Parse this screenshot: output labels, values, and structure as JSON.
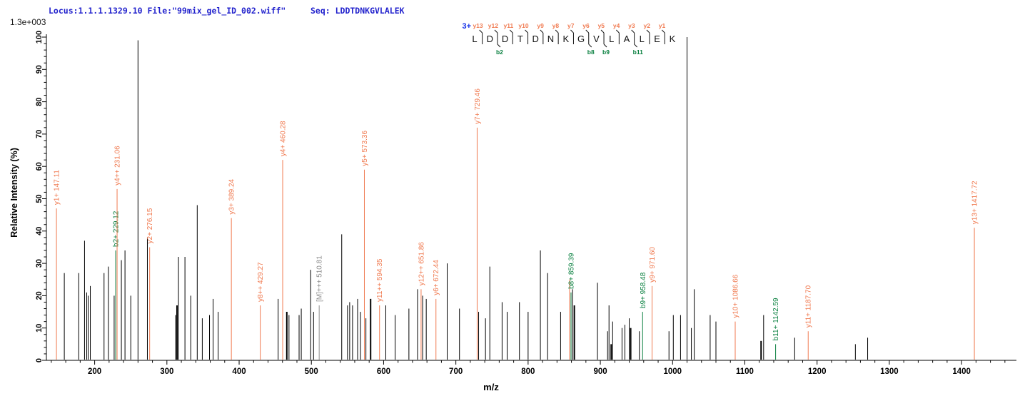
{
  "header": {
    "locus_file": "Locus:1.1.1.1329.10 File:\"99mix_gel_ID_002.wiff\"",
    "seq_label": "Seq: LDDTDNKGVLALEK"
  },
  "scale_label": "1.3e+003",
  "colors": {
    "header_blue": "#2323cd",
    "charge_blue": "#1430e8",
    "y_ion": "#f07a50",
    "b_ion": "#0a8040",
    "M": "#8c8c8c",
    "peak": "#000000",
    "axis": "#000000"
  },
  "peptide": {
    "charge_label": "3+",
    "sequence": "LDDTDNKGVLALEK",
    "residues": [
      "L",
      "D",
      "D",
      "T",
      "D",
      "N",
      "K",
      "G",
      "V",
      "L",
      "A",
      "L",
      "E",
      "K"
    ],
    "y_ion_ladder": [
      "y13",
      "y12",
      "y11",
      "y10",
      "y9",
      "y8",
      "y7",
      "y6",
      "y5",
      "y4",
      "y3",
      "y2",
      "y1"
    ],
    "b_ion_ladder": [
      {
        "label": "b2",
        "boundary": 2
      },
      {
        "label": "b8",
        "boundary": 8
      },
      {
        "label": "b9",
        "boundary": 9
      },
      {
        "label": "b11",
        "boundary": 11
      }
    ]
  },
  "chart_data": {
    "type": "bar",
    "subtype": "centroided-msms-spectrum",
    "title": "",
    "xlabel": "m/z",
    "ylabel": "Relative  Intensity (%)",
    "xlim": [
      133,
      1472
    ],
    "ylim": [
      0,
      100
    ],
    "x_ticks": [
      200,
      300,
      400,
      500,
      600,
      700,
      800,
      900,
      1000,
      1100,
      1200,
      1300,
      1400
    ],
    "y_ticks": [
      0,
      10,
      20,
      30,
      40,
      50,
      60,
      70,
      80,
      90,
      100
    ],
    "x_minor_step": 20,
    "y_minor_step": 2,
    "grid": false,
    "legend": false,
    "base_peak_absolute_intensity": "1.3e+003",
    "peak_format": [
      "mz",
      "intensity_pct",
      "ion_type(y|b|M|empty=unmatched)",
      "label",
      "line_width"
    ],
    "peaks": [
      [
        147.11,
        47,
        "y",
        "y1+ 147.11",
        1
      ],
      [
        158,
        27,
        "",
        "",
        1
      ],
      [
        178,
        27,
        "",
        "",
        1
      ],
      [
        186,
        37,
        "",
        "",
        1
      ],
      [
        189,
        21,
        "",
        "",
        1
      ],
      [
        191,
        20,
        "",
        "",
        1
      ],
      [
        194,
        23,
        "",
        "",
        1
      ],
      [
        213,
        27,
        "",
        "",
        1
      ],
      [
        219,
        29,
        "",
        "",
        1
      ],
      [
        227,
        20,
        "",
        "",
        1
      ],
      [
        229.12,
        34,
        "b",
        "b2+ 229.12",
        1
      ],
      [
        231.06,
        53,
        "y",
        "y4++ 231.06",
        1
      ],
      [
        237,
        31,
        "",
        "",
        1
      ],
      [
        242,
        34,
        "",
        "",
        1
      ],
      [
        250,
        20,
        "",
        "",
        1
      ],
      [
        260,
        99,
        "",
        "",
        1
      ],
      [
        273,
        38,
        "",
        "",
        1
      ],
      [
        276.15,
        35,
        "y",
        "y2+ 276.15",
        1
      ],
      [
        312,
        14,
        "",
        "",
        1
      ],
      [
        314,
        17,
        "",
        "",
        2
      ],
      [
        316,
        32,
        "",
        "",
        1
      ],
      [
        325,
        32,
        "",
        "",
        1
      ],
      [
        333,
        20,
        "",
        "",
        1
      ],
      [
        342,
        48,
        "",
        "",
        1
      ],
      [
        349,
        13,
        "",
        "",
        1
      ],
      [
        359,
        14,
        "",
        "",
        1
      ],
      [
        364,
        19,
        "",
        "",
        1
      ],
      [
        371,
        15,
        "",
        "",
        1
      ],
      [
        389.24,
        44,
        "y",
        "y3+ 389.24",
        1
      ],
      [
        429.27,
        17,
        "y",
        "y8++ 429.27",
        1
      ],
      [
        454,
        19,
        "",
        "",
        1
      ],
      [
        460.28,
        62,
        "y",
        "y4+ 460.28",
        1
      ],
      [
        466,
        15,
        "",
        "",
        2
      ],
      [
        469,
        14,
        "",
        "",
        1
      ],
      [
        483,
        14,
        "",
        "",
        1
      ],
      [
        486,
        16,
        "",
        "",
        1
      ],
      [
        499,
        28,
        "",
        "",
        1
      ],
      [
        503,
        15,
        "",
        "",
        1
      ],
      [
        510.81,
        17,
        "M",
        "[M]+++ 510.81",
        1
      ],
      [
        542,
        39,
        "",
        "",
        1
      ],
      [
        550,
        17,
        "",
        "",
        1
      ],
      [
        553,
        18,
        "",
        "",
        1
      ],
      [
        557,
        17,
        "",
        "",
        1
      ],
      [
        564,
        19,
        "",
        "",
        1
      ],
      [
        568,
        15,
        "",
        "",
        1
      ],
      [
        573.36,
        59,
        "y",
        "y5+ 573.36",
        1
      ],
      [
        575.5,
        13,
        "",
        "",
        1
      ],
      [
        582,
        19,
        "",
        "",
        2
      ],
      [
        594.35,
        17,
        "y",
        "y11++ 594.35",
        1
      ],
      [
        603,
        17,
        "",
        "",
        1
      ],
      [
        616,
        14,
        "",
        "",
        1
      ],
      [
        635,
        16,
        "",
        "",
        1
      ],
      [
        647,
        22,
        "",
        "",
        1
      ],
      [
        651.86,
        22,
        "y",
        "y12++ 651.86",
        1
      ],
      [
        654,
        20,
        "",
        "",
        1
      ],
      [
        659,
        19,
        "",
        "",
        1
      ],
      [
        672.44,
        19,
        "y",
        "y6+ 672.44",
        1
      ],
      [
        688,
        30,
        "",
        "",
        1
      ],
      [
        705,
        16,
        "",
        "",
        1
      ],
      [
        729.46,
        72,
        "y",
        "y7+ 729.46",
        1
      ],
      [
        731.5,
        15,
        "",
        "",
        1
      ],
      [
        741,
        13,
        "",
        "",
        1
      ],
      [
        747,
        29,
        "",
        "",
        1
      ],
      [
        764,
        18,
        "",
        "",
        1
      ],
      [
        771,
        15,
        "",
        "",
        1
      ],
      [
        788,
        18,
        "",
        "",
        1
      ],
      [
        800,
        15,
        "",
        "",
        1
      ],
      [
        817,
        34,
        "",
        "",
        1
      ],
      [
        827,
        27,
        "",
        "",
        1
      ],
      [
        845,
        15,
        "",
        "",
        1
      ],
      [
        857.4,
        25,
        "y",
        "",
        1
      ],
      [
        859.39,
        21,
        "b",
        "b8+ 859.39",
        1
      ],
      [
        861.5,
        22,
        "",
        "",
        1
      ],
      [
        864,
        17,
        "",
        "",
        2
      ],
      [
        896,
        24,
        "",
        "",
        1
      ],
      [
        910,
        9,
        "",
        "",
        1
      ],
      [
        912,
        17,
        "",
        "",
        1
      ],
      [
        915,
        5,
        "",
        "",
        2
      ],
      [
        917,
        12,
        "",
        "",
        1
      ],
      [
        930,
        10,
        "",
        "",
        1
      ],
      [
        934,
        11,
        "",
        "",
        1
      ],
      [
        940,
        13,
        "",
        "",
        1
      ],
      [
        942,
        10,
        "",
        "",
        2
      ],
      [
        954,
        9,
        "",
        "",
        1
      ],
      [
        958.48,
        15,
        "b",
        "b9+ 958.48",
        1
      ],
      [
        971.6,
        23,
        "y",
        "y9+ 971.60",
        1
      ],
      [
        995,
        9,
        "",
        "",
        1
      ],
      [
        1001,
        14,
        "",
        "",
        1
      ],
      [
        1011,
        14,
        "",
        "",
        1
      ],
      [
        1020,
        100,
        "",
        "",
        1
      ],
      [
        1026,
        10,
        "",
        "",
        1
      ],
      [
        1030,
        22,
        "",
        "",
        1
      ],
      [
        1052,
        14,
        "",
        "",
        1
      ],
      [
        1060,
        12,
        "",
        "",
        1
      ],
      [
        1086.66,
        12,
        "y",
        "y10+ 1086.66",
        1
      ],
      [
        1122.5,
        6,
        "",
        "",
        2
      ],
      [
        1126,
        14,
        "",
        "",
        1
      ],
      [
        1142.59,
        5,
        "b",
        "b11+ 1142.59",
        1
      ],
      [
        1169,
        7,
        "",
        "",
        1
      ],
      [
        1187.7,
        9,
        "y",
        "y11+ 1187.70",
        1
      ],
      [
        1253,
        5,
        "",
        "",
        1
      ],
      [
        1270,
        7,
        "",
        "",
        1
      ],
      [
        1417.72,
        41,
        "y",
        "y13+ 1417.72",
        1
      ]
    ]
  }
}
